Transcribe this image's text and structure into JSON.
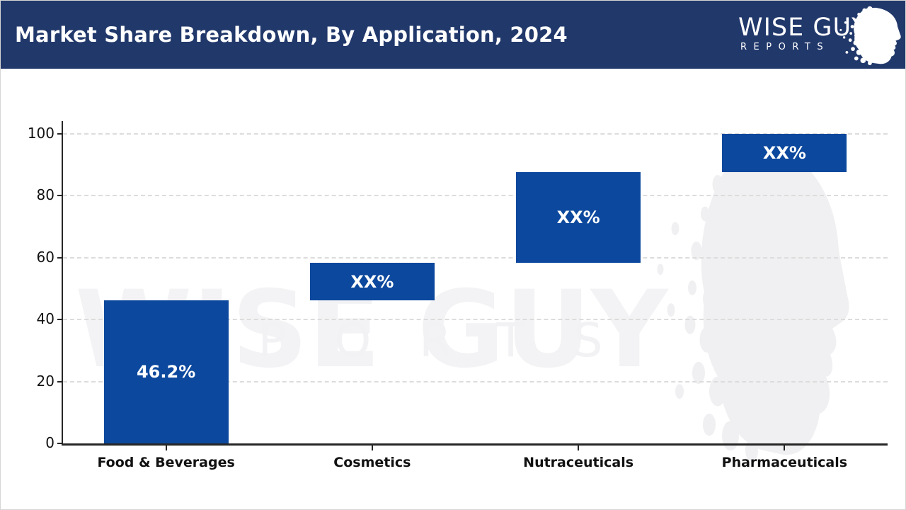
{
  "header": {
    "title": "Market Share Breakdown, By Application, 2024",
    "logo": {
      "line1": "WISE GUY",
      "line2": "REPORTS"
    }
  },
  "watermark": {
    "line1": "WISE GUY",
    "line2": "REPORTS"
  },
  "colors": {
    "header_bg": "#21386b",
    "bar": "#0c489d",
    "grid": "#dcdcdc",
    "axis": "#262626",
    "bar_label": "#ffffff",
    "tick_label": "#111111",
    "watermark": "#f2f2f4"
  },
  "chart_data": {
    "type": "bar",
    "subtype": "waterfall",
    "title": "Market Share Breakdown, By Application, 2024",
    "xlabel": "",
    "ylabel": "",
    "categories": [
      "Food & Beverages",
      "Cosmetics",
      "Nutraceuticals",
      "Pharmaceuticals"
    ],
    "segments": [
      {
        "category": "Food & Beverages",
        "start": 0,
        "end": 46.2,
        "label": "46.2%"
      },
      {
        "category": "Cosmetics",
        "start": 46.2,
        "end": 58.2,
        "label": "XX%"
      },
      {
        "category": "Nutraceuticals",
        "start": 58.2,
        "end": 87.5,
        "label": "XX%"
      },
      {
        "category": "Pharmaceuticals",
        "start": 87.5,
        "end": 100,
        "label": "XX%"
      }
    ],
    "yticks": [
      0,
      20,
      40,
      60,
      80,
      100
    ],
    "ylim": [
      0,
      104
    ],
    "grid": "dashed-horizontal",
    "legend": "none"
  }
}
